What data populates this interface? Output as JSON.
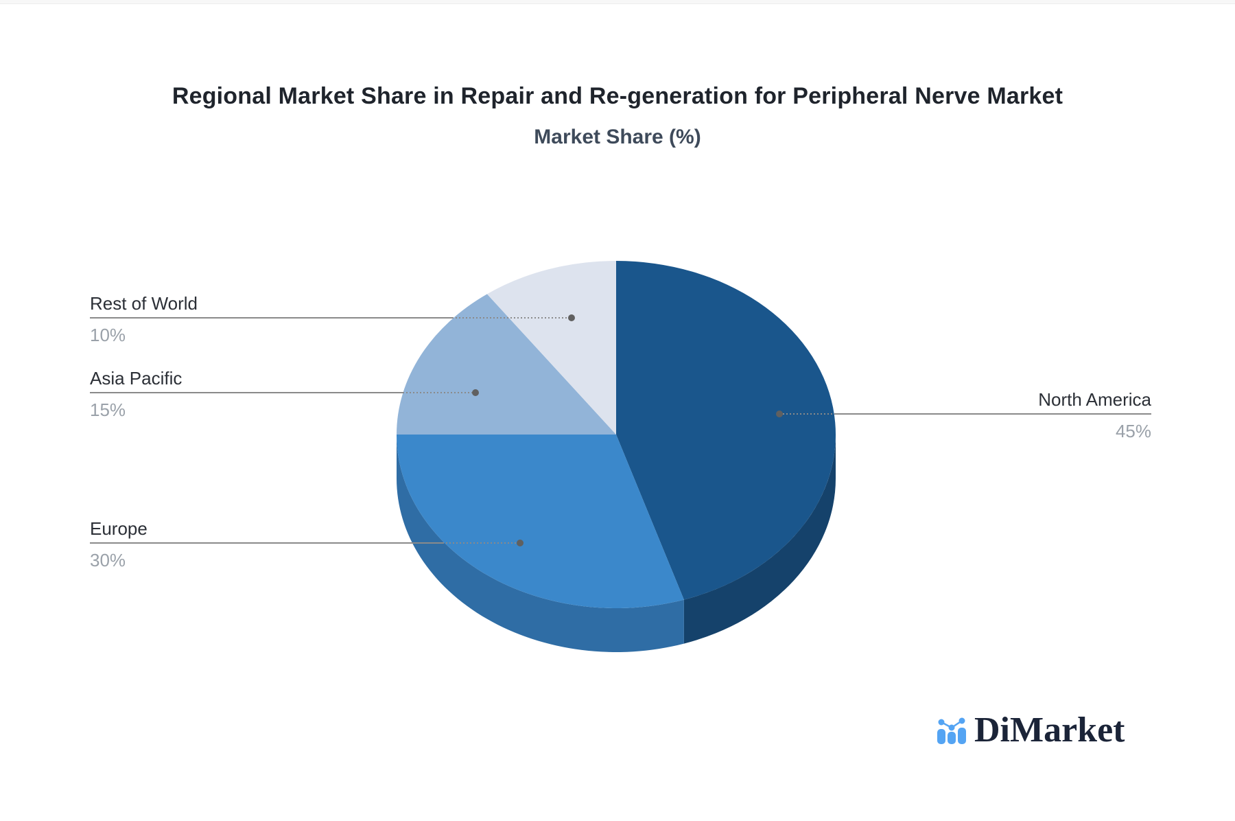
{
  "header": {
    "title": "Regional Market Share in Repair and Re-generation for Peripheral Nerve Market",
    "subtitle": "Market Share (%)"
  },
  "chart_data": {
    "type": "pie",
    "title": "Regional Market Share in Repair and Re-generation for Peripheral Nerve Market",
    "subtitle": "Market Share (%)",
    "unit": "%",
    "three_d": true,
    "start_angle": "top",
    "direction": "clockwise",
    "legend_position": "none",
    "labels": "callout-leader-lines",
    "leader_line_color": "#8A8A8A",
    "leader_dot_color": "#606060",
    "label_text_color": "#2B2F36",
    "percent_text_color": "#9AA1A9",
    "slices": [
      {
        "label": "North America",
        "value": 45,
        "pct_label": "45%",
        "color": "#1A568C",
        "side_color": "#15426B"
      },
      {
        "label": "Europe",
        "value": 30,
        "pct_label": "30%",
        "color": "#3B88CB",
        "side_color": "#2F6DA5"
      },
      {
        "label": "Asia Pacific",
        "value": 15,
        "pct_label": "15%",
        "color": "#92B4D8",
        "side_color": "#7FA3C9"
      },
      {
        "label": "Rest of World",
        "value": 10,
        "pct_label": "10%",
        "color": "#DDE3EE",
        "side_color": "#C2CCDD"
      }
    ]
  },
  "branding": {
    "logo_text": "DiMarket",
    "logo_text_color": "#1B2438",
    "logo_accent_color": "#54A4F3"
  }
}
